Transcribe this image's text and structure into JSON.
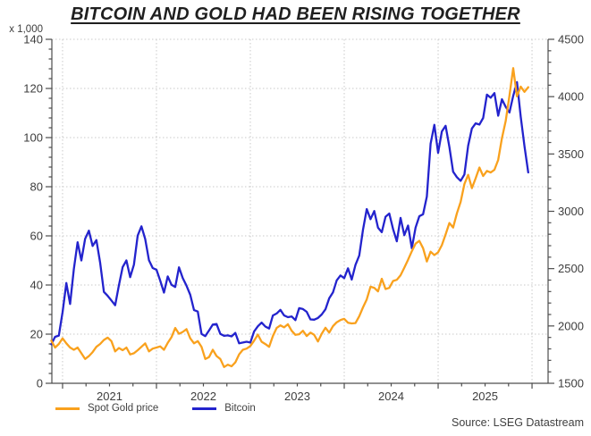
{
  "title": "BITCOIN AND GOLD HAD BEEN RISING TOGETHER",
  "source": "Source: LSEG Datastream",
  "legend": {
    "items": [
      {
        "label": "Spot Gold price",
        "color": "#f9a11d"
      },
      {
        "label": "Bitcoin",
        "color": "#2323cd"
      }
    ]
  },
  "chart_data": {
    "type": "line",
    "title": "BITCOIN AND GOLD HAD BEEN RISING TOGETHER",
    "grid": "dotted horizontal at left-axis majors, dotted vertical at year starts",
    "legend_position": "bottom-left",
    "x_unit": "year (weekly price data, late Nov 2020 - late 2025)",
    "x_range": [
      2020.886,
      2026.171
    ],
    "x_start": 2020.88,
    "x_step": 0.04,
    "x_ticks_major": [
      2021,
      2022,
      2023,
      2024,
      2025,
      2026
    ],
    "x_ticks_minor": [
      2021.25,
      2021.5,
      2021.75,
      2022.25,
      2022.5,
      2022.75,
      2023.25,
      2023.5,
      2023.75,
      2024.25,
      2024.5,
      2024.75,
      2025.25,
      2025.5,
      2025.75
    ],
    "x_tick_labels": [
      {
        "label": "2021",
        "x": 2021.5
      },
      {
        "label": "2022",
        "x": 2022.5
      },
      {
        "label": "2023",
        "x": 2023.5
      },
      {
        "label": "2024",
        "x": 2024.5
      },
      {
        "label": "2025",
        "x": 2025.5
      }
    ],
    "left_axis": {
      "multiplier_label": "x 1,000",
      "range": [
        0,
        140
      ],
      "major_ticks": [
        0,
        20,
        40,
        60,
        80,
        100,
        120,
        140
      ],
      "minor_step": 4,
      "series": "Bitcoin (thousand USD)"
    },
    "right_axis": {
      "range": [
        1500,
        4500
      ],
      "major_ticks": [
        1500,
        2000,
        2500,
        3000,
        3500,
        4000,
        4500
      ],
      "minor_step": 100,
      "series": "Spot Gold price (USD/oz)"
    },
    "series": [
      {
        "name": "Bitcoin",
        "data_name": "bitcoin-line",
        "axis": "left",
        "color": "#2323cd",
        "values": [
          15.9,
          18.9,
          19.4,
          29.0,
          40.8,
          32.3,
          46.5,
          57.4,
          50.0,
          58.8,
          62.1,
          55.9,
          58.3,
          49.1,
          37.2,
          35.6,
          33.7,
          31.8,
          39.9,
          47.3,
          50.0,
          43.2,
          48.3,
          60.1,
          63.9,
          58.7,
          50.1,
          46.9,
          46.2,
          41.8,
          36.9,
          43.5,
          40.1,
          39.2,
          47.2,
          42.8,
          39.7,
          36.0,
          29.8,
          29.2,
          20.1,
          19.2,
          21.5,
          23.9,
          24.1,
          20.1,
          19.3,
          19.5,
          19.1,
          20.5,
          16.3,
          16.6,
          16.9,
          16.6,
          21.1,
          23.2,
          24.7,
          23.1,
          22.3,
          27.6,
          28.4,
          29.9,
          27.6,
          26.9,
          27.2,
          25.7,
          30.6,
          30.2,
          29.1,
          26.0,
          25.9,
          26.6,
          28.0,
          30.1,
          34.6,
          37.0,
          41.9,
          43.9,
          42.8,
          46.8,
          42.2,
          48.2,
          52.0,
          62.5,
          70.9,
          66.8,
          70.1,
          63.3,
          61.5,
          67.8,
          69.1,
          62.8,
          57.8,
          67.3,
          60.3,
          64.2,
          55.0,
          63.4,
          68.0,
          68.8,
          76.0,
          97.5,
          105.2,
          93.8,
          102.5,
          104.8,
          96.2,
          86.1,
          83.9,
          82.4,
          85.0,
          96.7,
          103.7,
          105.8,
          105.3,
          108.0,
          117.5,
          116.2,
          118.1,
          108.9,
          115.6,
          112.5,
          110.2,
          117.0,
          122.6,
          108.5,
          96.5,
          85.8
        ]
      },
      {
        "name": "Spot Gold price",
        "data_name": "gold-line",
        "axis": "right",
        "color": "#f9a11d",
        "values": [
          1872,
          1812,
          1843,
          1892,
          1848,
          1812,
          1792,
          1812,
          1762,
          1712,
          1737,
          1772,
          1818,
          1843,
          1878,
          1898,
          1868,
          1778,
          1808,
          1788,
          1812,
          1752,
          1762,
          1788,
          1818,
          1848,
          1778,
          1802,
          1812,
          1822,
          1792,
          1852,
          1902,
          1982,
          1932,
          1948,
          1972,
          1892,
          1848,
          1868,
          1818,
          1712,
          1728,
          1792,
          1738,
          1712,
          1642,
          1662,
          1648,
          1682,
          1752,
          1792,
          1802,
          1825,
          1872,
          1925,
          1862,
          1842,
          1818,
          1912,
          1982,
          2005,
          1988,
          2015,
          1958,
          1922,
          1928,
          1958,
          1912,
          1942,
          1922,
          1865,
          1932,
          1985,
          1942,
          1998,
          2032,
          2052,
          2062,
          2028,
          2022,
          2025,
          2085,
          2162,
          2232,
          2342,
          2332,
          2302,
          2412,
          2322,
          2332,
          2392,
          2402,
          2442,
          2508,
          2578,
          2652,
          2718,
          2742,
          2678,
          2562,
          2648,
          2618,
          2642,
          2705,
          2798,
          2898,
          2858,
          2982,
          3082,
          3238,
          3318,
          3202,
          3288,
          3382,
          3308,
          3352,
          3338,
          3362,
          3448,
          3638,
          3788,
          4008,
          4248,
          4002,
          4088,
          4042,
          4082
        ]
      }
    ]
  }
}
